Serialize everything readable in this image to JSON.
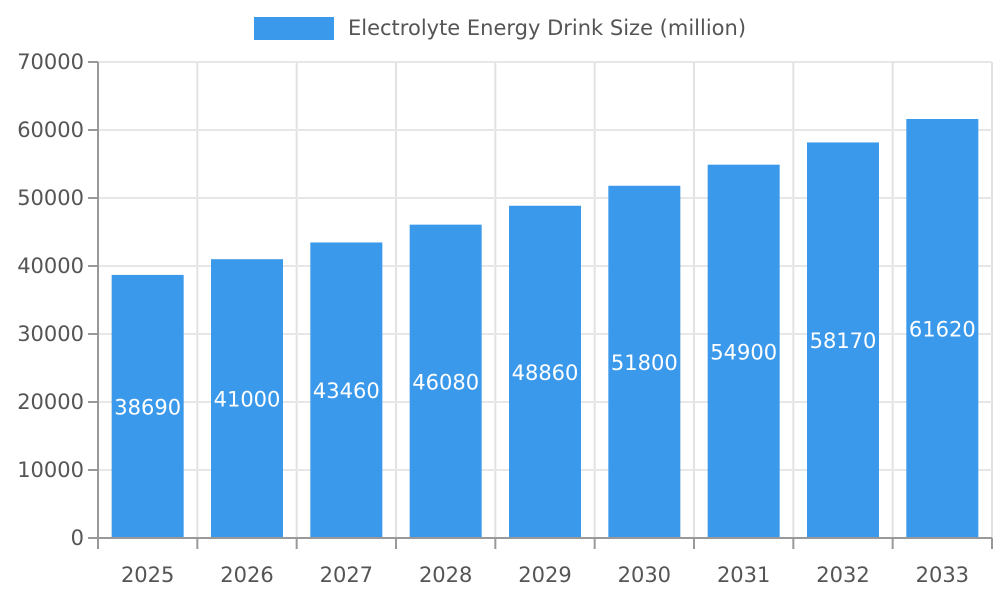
{
  "legend": {
    "label": "Electrolyte Energy Drink Size (million)"
  },
  "chart_data": {
    "type": "bar",
    "title": "Electrolyte Energy Drink Size (million)",
    "categories": [
      "2025",
      "2026",
      "2027",
      "2028",
      "2029",
      "2030",
      "2031",
      "2032",
      "2033"
    ],
    "values": [
      38690,
      41000,
      43460,
      46080,
      48860,
      51800,
      54900,
      58170,
      61620
    ],
    "value_labels": [
      "38690",
      "41000",
      "43460",
      "46080",
      "48860",
      "51800",
      "54900",
      "58170",
      "61620"
    ],
    "xlabel": "",
    "ylabel": "",
    "ylim": [
      0,
      70000
    ],
    "yticks": [
      0,
      10000,
      20000,
      30000,
      40000,
      50000,
      60000,
      70000
    ],
    "grid": true,
    "legend_position": "top-center",
    "colors": {
      "bar": "#3B99EC",
      "value_label": "#FFFFFF",
      "axis_line": "#999999",
      "tick_label": "#555555",
      "h_gridline": "#E7E7E7",
      "v_gridline": "#E2E2E2",
      "legend_text": "#555555",
      "background": "#FFFFFF"
    }
  }
}
